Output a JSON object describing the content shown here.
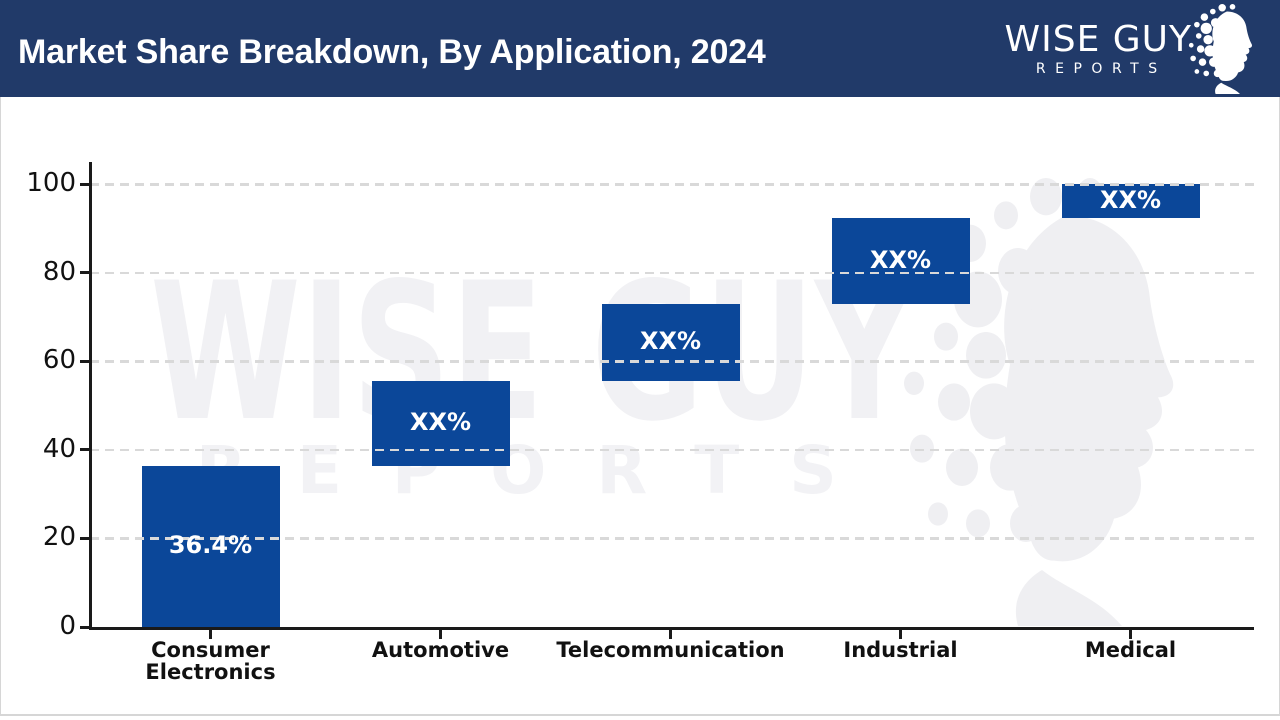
{
  "header": {
    "title": "Market Share Breakdown, By Application, 2024",
    "logo": {
      "brand": "WISE GUY",
      "sub": "REPORTS"
    }
  },
  "watermark": {
    "brand": "WISE GUY",
    "sub": "REPORTS"
  },
  "chart_data": {
    "type": "bar",
    "subtype": "waterfall-stacked-segments",
    "title": "Market Share Breakdown, By Application, 2024",
    "categories": [
      "Consumer Electronics",
      "Automotive",
      "Telecommunication",
      "Industrial",
      "Medical"
    ],
    "segments": [
      {
        "category": "Consumer Electronics",
        "start": 0,
        "end": 36.4,
        "label": "36.4%"
      },
      {
        "category": "Automotive",
        "start": 36.4,
        "end": 55.5,
        "label": "XX%"
      },
      {
        "category": "Telecommunication",
        "start": 55.5,
        "end": 73.0,
        "label": "XX%"
      },
      {
        "category": "Industrial",
        "start": 73.0,
        "end": 92.3,
        "label": "XX%"
      },
      {
        "category": "Medical",
        "start": 92.3,
        "end": 100.0,
        "label": "XX%"
      }
    ],
    "y_ticks": [
      0,
      20,
      40,
      60,
      80,
      100
    ],
    "ylim": [
      0,
      105
    ],
    "xlabel": "",
    "ylabel": "",
    "grid": "horizontal-dashed",
    "grid_above_bars": true,
    "legend": "none",
    "bar_color": "#0B4799",
    "bar_label_color": "#ffffff",
    "header_color": "#213A69",
    "gridline_color": "#D9D9D9"
  }
}
